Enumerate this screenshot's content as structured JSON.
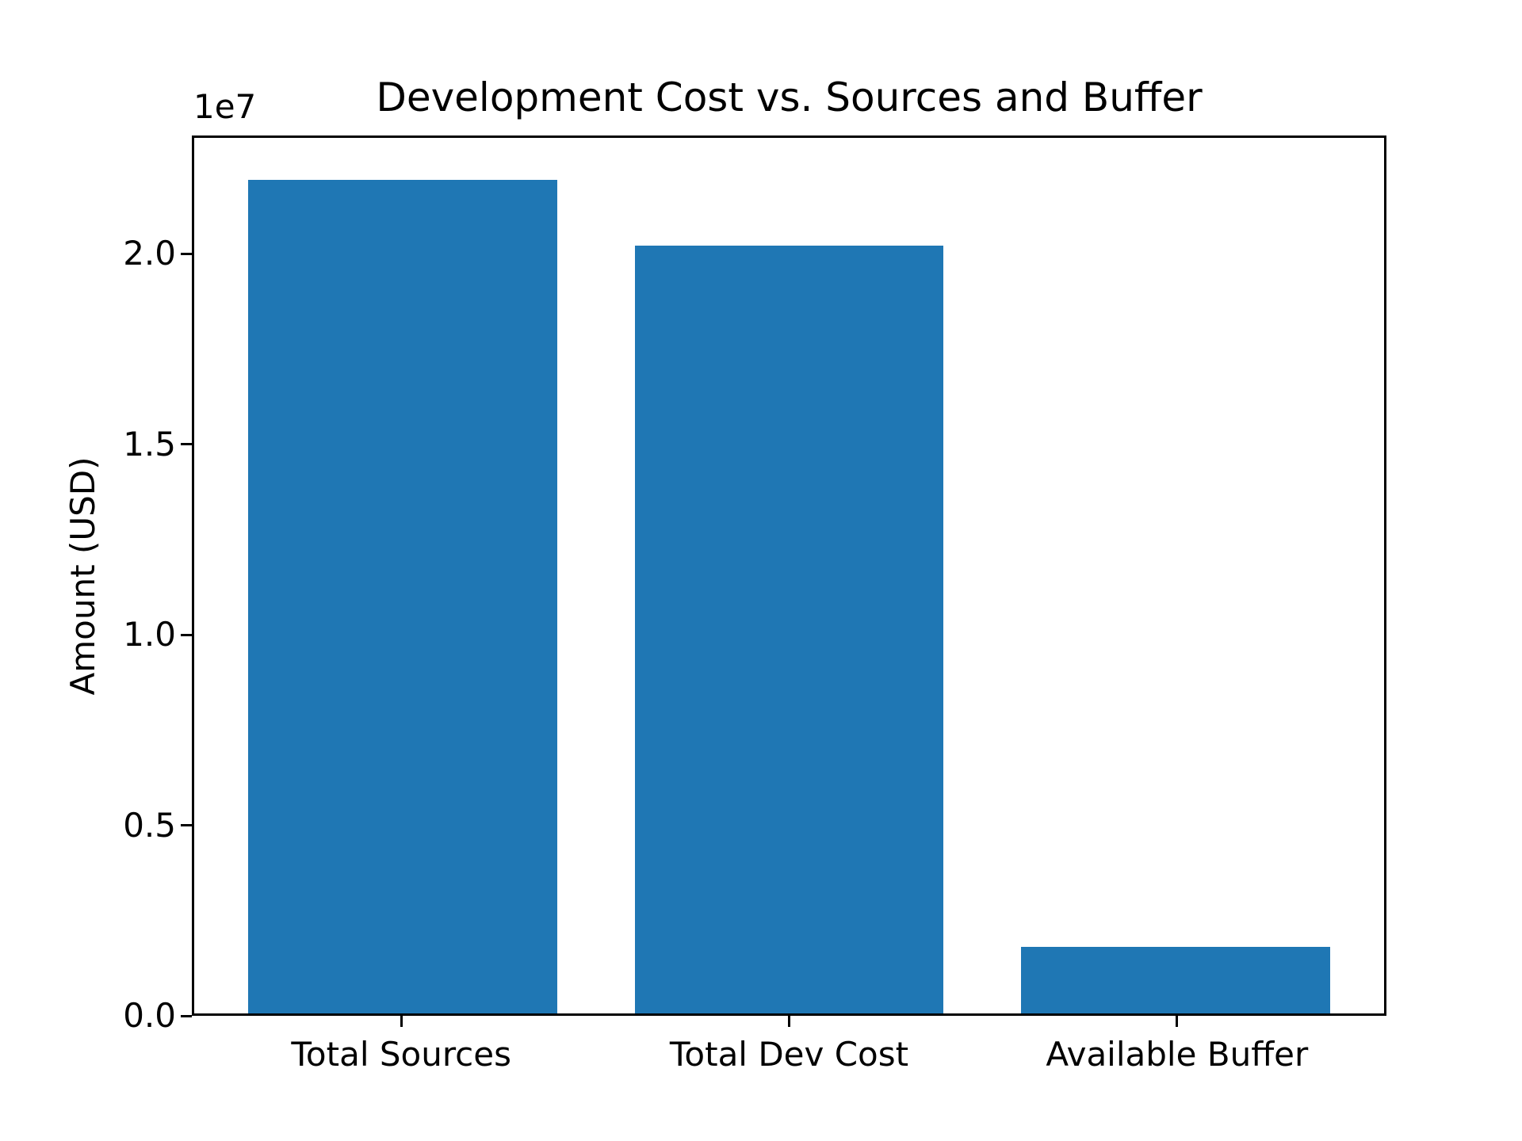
{
  "figure": {
    "background": "#ffffff",
    "text_color": "#000000"
  },
  "chart_data": {
    "type": "bar",
    "title": "Development Cost vs. Sources and Buffer",
    "xlabel": "",
    "ylabel": "Amount (USD)",
    "y_offset_text": "1e7",
    "categories": [
      "Total Sources",
      "Total Dev Cost",
      "Available Buffer"
    ],
    "values": [
      22000000,
      20250000,
      1750000
    ],
    "bar_color": "#1f77b4",
    "bar_width_fraction": 0.8,
    "ylim": [
      0,
      23100000
    ],
    "xlim": [
      -0.54,
      2.54
    ],
    "yticks": {
      "values": [
        0,
        5000000,
        10000000,
        15000000,
        20000000
      ],
      "labels": [
        "0.0",
        "0.5",
        "1.0",
        "1.5",
        "2.0"
      ]
    },
    "grid": false,
    "legend_position": "none"
  }
}
